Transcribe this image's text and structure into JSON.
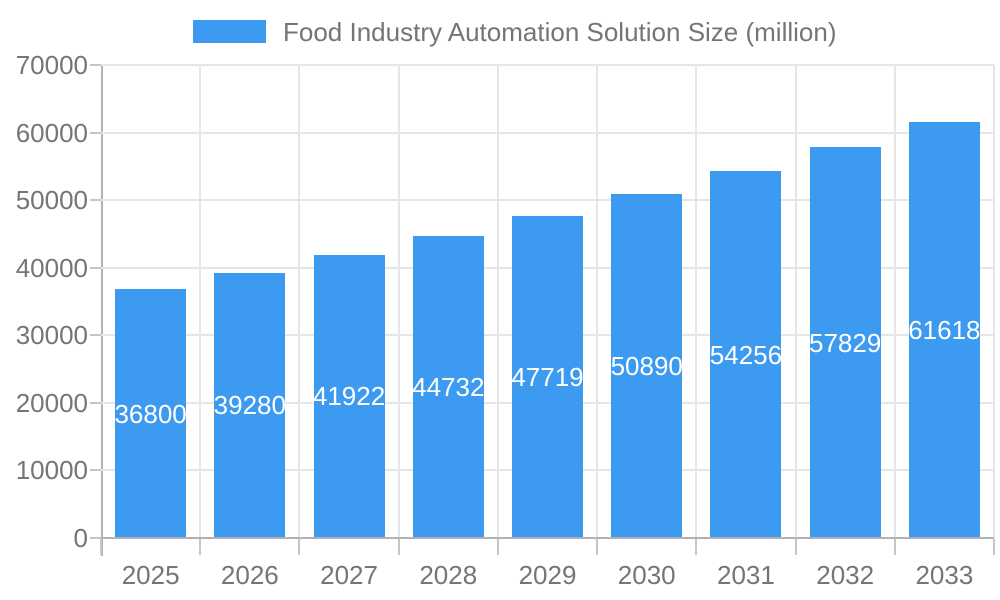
{
  "chart_data": {
    "type": "bar",
    "title": "Food Industry Automation Solution Size (million)",
    "legend_position": "top",
    "categories": [
      "2025",
      "2026",
      "2027",
      "2028",
      "2029",
      "2030",
      "2031",
      "2032",
      "2033"
    ],
    "series": [
      {
        "name": "Food Industry Automation Solution Size (million)",
        "values": [
          36800,
          39280,
          41922,
          44732,
          47719,
          50890,
          54256,
          57829,
          61618
        ]
      }
    ],
    "bar_value_labels": [
      "36800",
      "39280",
      "41922",
      "44732",
      "47719",
      "50890",
      "54256",
      "57829",
      "61618"
    ],
    "xlabel": "",
    "ylabel": "",
    "ylim": [
      0,
      70000
    ],
    "y_tick_step": 10000,
    "y_tick_labels": [
      "0",
      "10000",
      "20000",
      "30000",
      "40000",
      "50000",
      "60000",
      "70000"
    ],
    "grid": true,
    "colors": {
      "bar": "#3C9AF0",
      "bar_label_text": "#ffffff",
      "axis_text": "#757575",
      "gridline": "#e6e6e6",
      "axis_line": "#b2b2b2",
      "tick": "#c6c6c6",
      "background": "#ffffff"
    }
  }
}
